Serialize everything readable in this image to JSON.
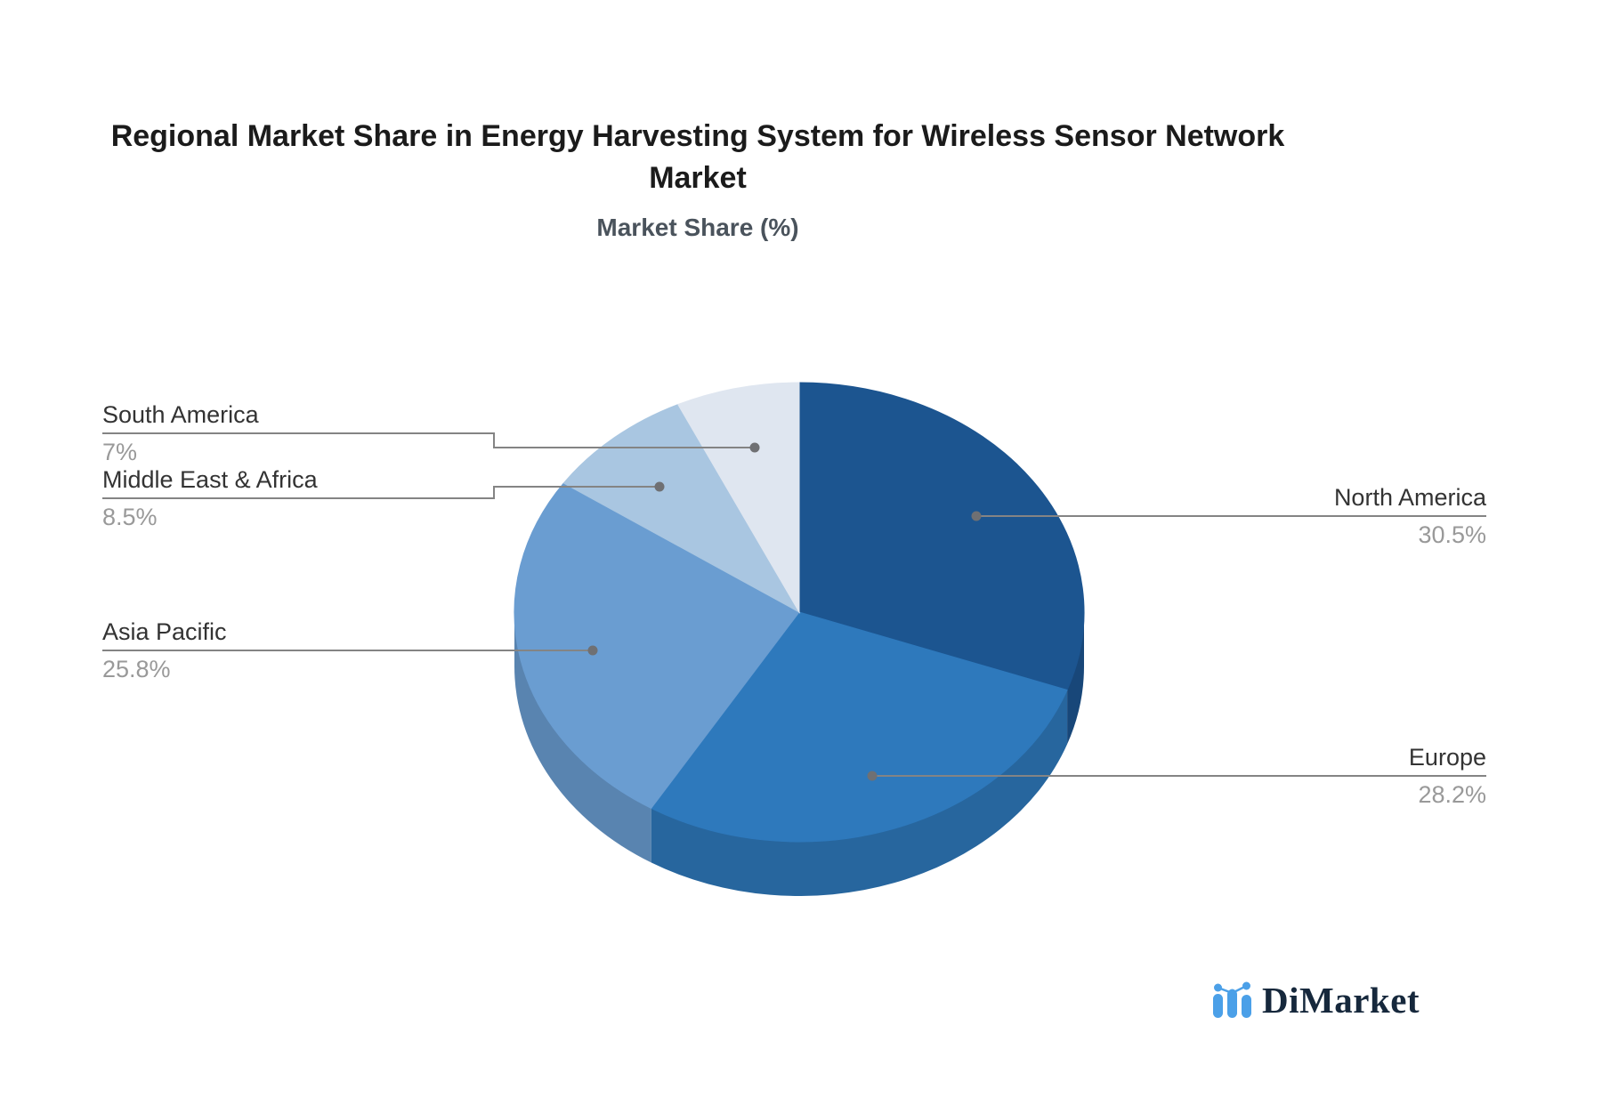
{
  "chart_data": {
    "type": "pie",
    "title": "Regional Market Share in Energy Harvesting System for Wireless Sensor Network Market",
    "subtitle": "Market Share (%)",
    "unit": "%",
    "style_3d": true,
    "start_angle_deg": 0,
    "direction": "clockwise",
    "legend_position": "none",
    "slices": [
      {
        "label": "North America",
        "value": 30.5,
        "display": "30.5%",
        "color": "#1C5590"
      },
      {
        "label": "Europe",
        "value": 28.2,
        "display": "28.2%",
        "color": "#2E79BC"
      },
      {
        "label": "Asia Pacific",
        "value": 25.8,
        "display": "25.8%",
        "color": "#6A9DD1"
      },
      {
        "label": "Middle East & Africa",
        "value": 8.5,
        "display": "8.5%",
        "color": "#A9C6E1"
      },
      {
        "label": "South America",
        "value": 7,
        "display": "7%",
        "color": "#DFE6F0"
      }
    ]
  },
  "logo": {
    "text": "DiMarket",
    "text_color": "#16283c",
    "icon_color": "#4BA0E8",
    "icon": "bar-line-chart-icon"
  },
  "style": {
    "background": "#ffffff",
    "title_color": "#1b1b1b",
    "subtitle_color": "#4a535c",
    "label_color": "#333333",
    "value_color": "#999999",
    "leader_line_color": "#848484",
    "leader_dot_color": "#6F7073"
  }
}
